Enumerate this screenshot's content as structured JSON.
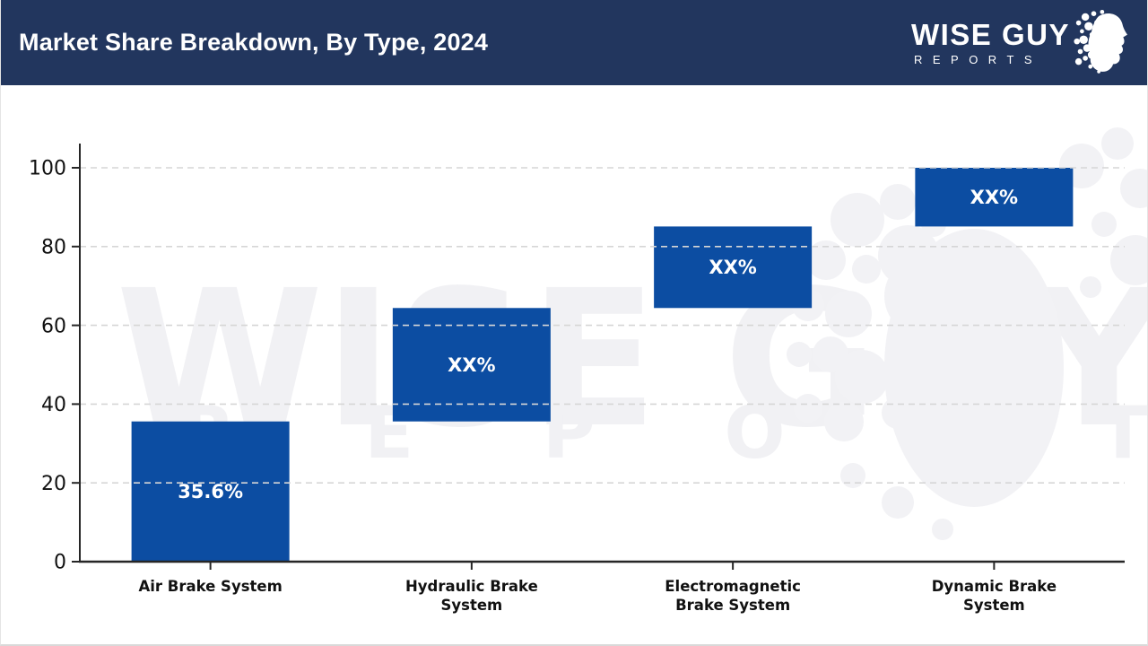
{
  "header": {
    "title": "Market Share Breakdown, By Type, 2024",
    "bg_color": "#22365E",
    "logo": {
      "wordmark": "WISE GUY",
      "subtext": "REPORTS"
    }
  },
  "watermark": {
    "wordmark": "WISE GUY",
    "subtext": "R E P O R T S"
  },
  "chart_data": {
    "type": "bar",
    "subtype": "waterfall",
    "title": "Market Share Breakdown, By Type, 2024",
    "categories": [
      "Air Brake System",
      "Hydraulic Brake System",
      "Electromagnetic Brake System",
      "Dynamic Brake System"
    ],
    "category_label_lines": [
      [
        "Air Brake System"
      ],
      [
        "Hydraulic Brake",
        "System"
      ],
      [
        "Electromagnetic",
        "Brake System"
      ],
      [
        "Dynamic Brake",
        "System"
      ]
    ],
    "series": [
      {
        "name": "Market Share (%)",
        "segments": [
          {
            "category": "Air Brake System",
            "start": 0,
            "end": 35.6,
            "label": "35.6%"
          },
          {
            "category": "Hydraulic Brake System",
            "start": 35.6,
            "end": 64.4,
            "label": "XX%"
          },
          {
            "category": "Electromagnetic Brake System",
            "start": 64.4,
            "end": 85.1,
            "label": "XX%"
          },
          {
            "category": "Dynamic Brake System",
            "start": 85.1,
            "end": 100,
            "label": "XX%"
          }
        ]
      }
    ],
    "ylim": [
      0,
      100
    ],
    "yticks": [
      0,
      20,
      40,
      60,
      80,
      100
    ],
    "grid": {
      "horizontal": true,
      "style": "dashed",
      "color": "#D6D6D6"
    },
    "bar_color": "#0C4DA2",
    "bar_label_color": "#FFFFFF",
    "axis_color": "#262626",
    "tick_label_color": "#111111"
  }
}
